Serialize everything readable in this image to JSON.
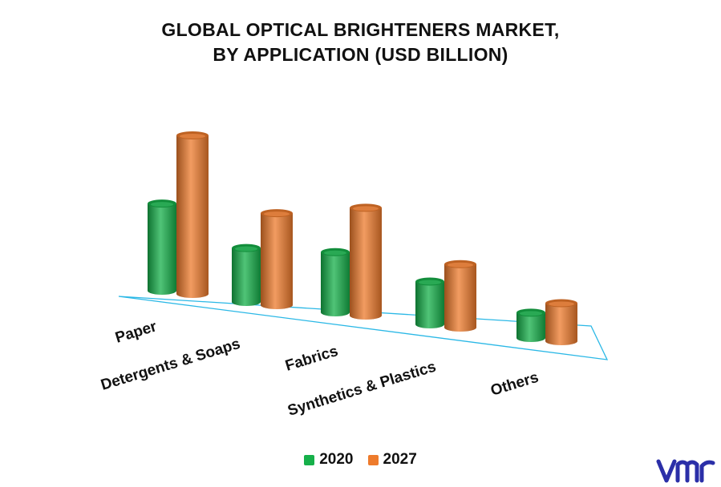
{
  "chart_data": {
    "type": "bar",
    "title_line1": "GLOBAL OPTICAL BRIGHTENERS MARKET,",
    "title_line2": "BY APPLICATION (USD BILLION)",
    "categories": [
      "Paper",
      "Detergents & Soaps",
      "Fabrics",
      "Synthetics & Plastics",
      "Others"
    ],
    "series": [
      {
        "name": "2020",
        "values": [
          0.55,
          0.34,
          0.38,
          0.27,
          0.16
        ],
        "color": "#16b04a"
      },
      {
        "name": "2027",
        "values": [
          1.0,
          0.58,
          0.68,
          0.4,
          0.24
        ],
        "color": "#ee7b2c"
      }
    ],
    "ylim": [
      0,
      1.0
    ],
    "grid": false,
    "legend_position": "bottom",
    "style": "3d-cylinder"
  },
  "brand": {
    "logo_icon": "vmr-logo-icon",
    "logo_color": "#2b2fa8"
  }
}
